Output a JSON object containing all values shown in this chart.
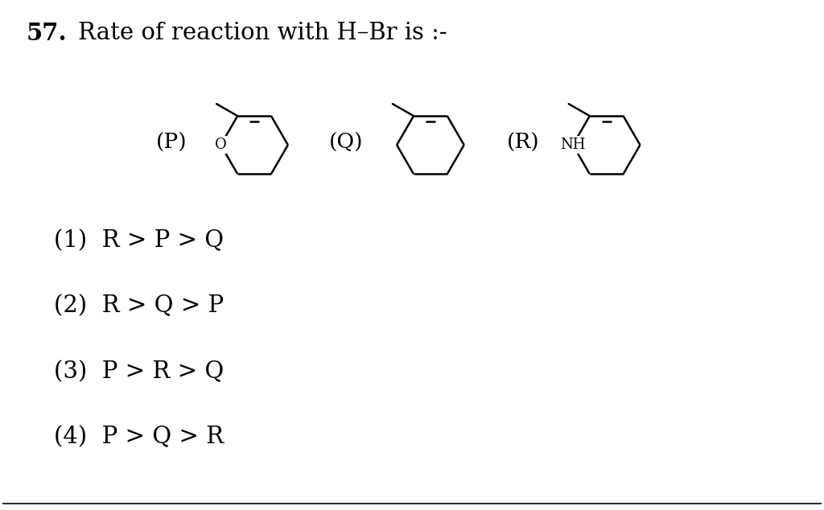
{
  "bg_color": "#ffffff",
  "question_number": "57.",
  "question_text": "Rate of reaction with H–Br is :-",
  "options": [
    "(1)  R > P > Q",
    "(2)  R > Q > P",
    "(3)  P > R > Q",
    "(4)  P > Q > R"
  ],
  "labels": [
    "(P)",
    "(Q)",
    "(R)"
  ],
  "heteroatoms": [
    "O",
    "",
    "NH"
  ],
  "fig_width": 10.24,
  "fig_height": 6.34,
  "font_size_question": 21,
  "font_size_options": 21,
  "font_size_labels": 19,
  "lw": 1.8
}
